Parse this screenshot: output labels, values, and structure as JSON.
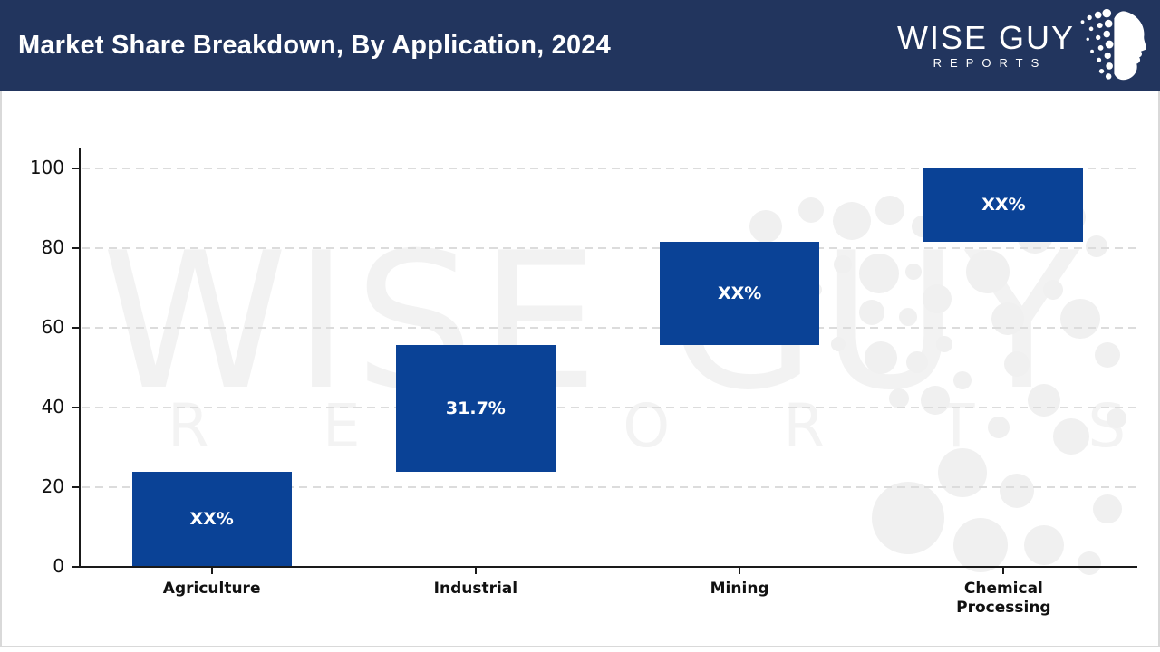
{
  "header": {
    "title": "Market Share Breakdown, By Application, 2024",
    "logo": {
      "line1": "WISE GUY",
      "line2": "REPORTS"
    }
  },
  "watermark": {
    "line1": "WISE GUY",
    "line2": "R E P O R T S"
  },
  "chart_data": {
    "type": "bar",
    "subtype": "floating-waterfall",
    "title": "Market Share Breakdown, By Application, 2024",
    "categories": [
      "Agriculture",
      "Industrial",
      "Mining",
      "Chemical Processing"
    ],
    "bars": [
      {
        "category": "Agriculture",
        "start": 0,
        "end": 23.9,
        "label": "XX%"
      },
      {
        "category": "Industrial",
        "start": 23.9,
        "end": 55.6,
        "label": "31.7%"
      },
      {
        "category": "Mining",
        "start": 55.6,
        "end": 81.7,
        "label": "XX%"
      },
      {
        "category": "Chemical Processing",
        "start": 81.7,
        "end": 100,
        "label": "XX%"
      }
    ],
    "yticks": [
      0,
      20,
      40,
      60,
      80,
      100
    ],
    "ylim": [
      0,
      105.5
    ],
    "xlabel": "",
    "ylabel": "",
    "grid": "horizontal-dashed",
    "legend": "none"
  },
  "colors": {
    "header_bg": "#22355E",
    "bar_fill": "#0A4296",
    "bar_label": "#FFFFFF",
    "grid": "#DCDCDC",
    "axis": "#1A1A1A",
    "watermark": "#F2F2F2",
    "frame_border": "#D9D9D9"
  }
}
